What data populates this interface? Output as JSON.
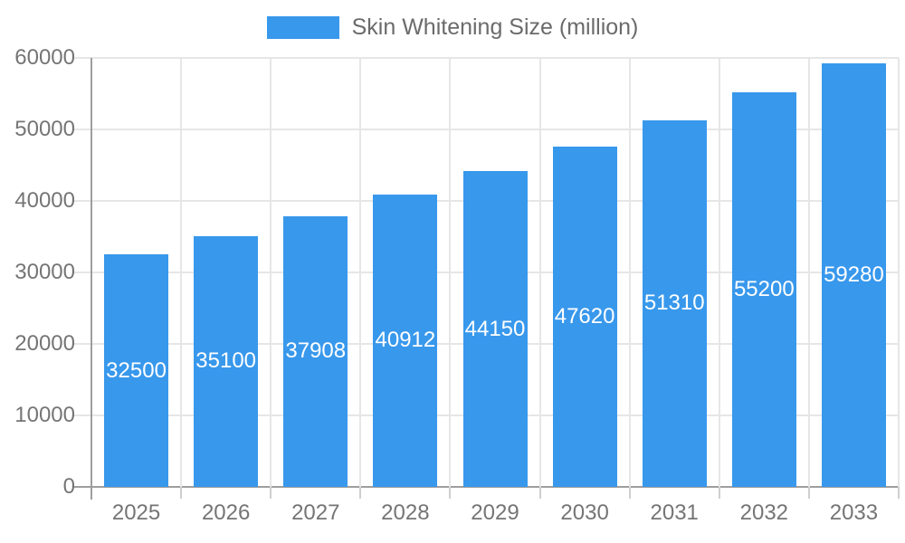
{
  "legend": {
    "swatch_color": "#3898ec"
  },
  "chart_data": {
    "type": "bar",
    "series_name": "Skin Whitening Size (million)",
    "categories": [
      "2025",
      "2026",
      "2027",
      "2028",
      "2029",
      "2030",
      "2031",
      "2032",
      "2033"
    ],
    "values": [
      32500,
      35100,
      37908,
      40912,
      44150,
      47620,
      51310,
      55200,
      59280
    ],
    "value_labels": [
      "32500",
      "35100",
      "37908",
      "40912",
      "44150",
      "47620",
      "51310",
      "55200",
      "59280"
    ],
    "title": "",
    "xlabel": "",
    "ylabel": "",
    "ylim": [
      0,
      60000
    ],
    "yticks": [
      0,
      10000,
      20000,
      30000,
      40000,
      50000,
      60000
    ],
    "ytick_labels": [
      "0",
      "10000",
      "20000",
      "30000",
      "40000",
      "50000",
      "60000"
    ],
    "grid": true,
    "legend_position": "top",
    "bar_color": "#3898ec",
    "value_label_color": "#ffffff",
    "axis_label_color": "#757575",
    "gridline_color": "#e6e6e6",
    "axis_line_color": "#9e9e9e"
  }
}
